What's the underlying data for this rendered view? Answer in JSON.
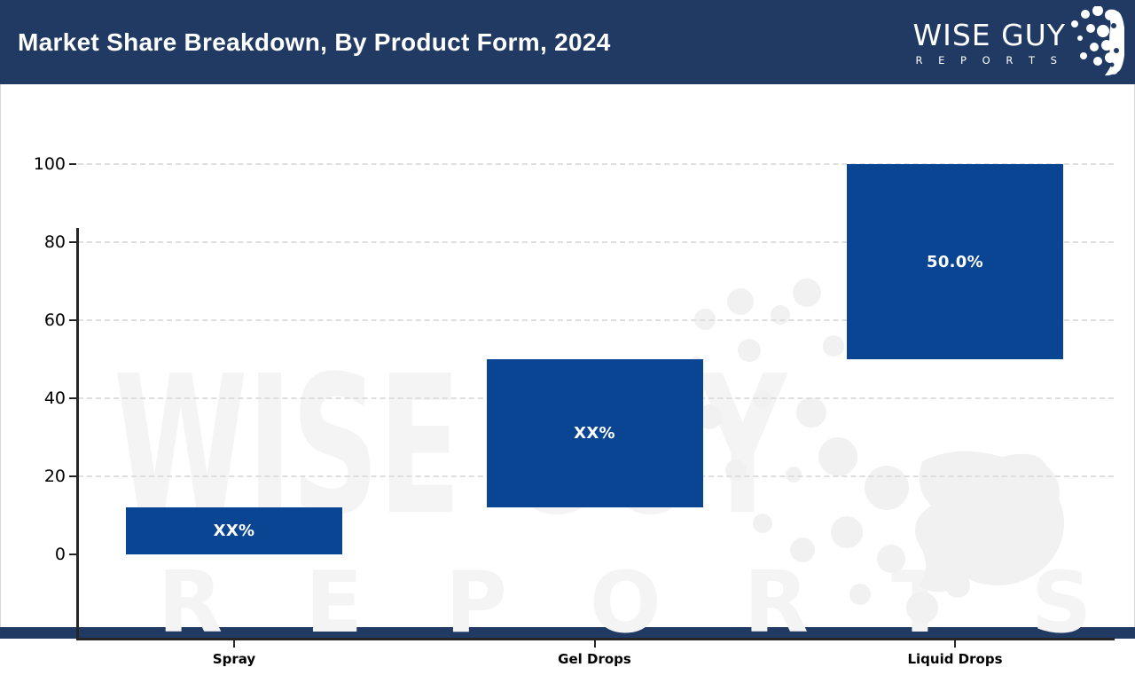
{
  "header": {
    "title": "Market Share Breakdown, By Product Form, 2024",
    "logo": {
      "brand": "WISE GUY",
      "sub": "R E P O R T S"
    }
  },
  "watermark": {
    "brand": "WISE GUY",
    "sub": "R E P O R T S"
  },
  "colors": {
    "header_bg": "#203a64",
    "bar": "#0a4593",
    "grid": "#dedede",
    "axis": "#262626",
    "watermark": "#f4f4f4",
    "bar_label": "#ffffff"
  },
  "chart_data": {
    "type": "bar",
    "subtype": "floating-waterfall",
    "title": "Market Share Breakdown, By Product Form, 2024",
    "categories": [
      "Spray",
      "Gel Drops",
      "Liquid Drops"
    ],
    "series": [
      {
        "name": "Market Share (%)",
        "segments": [
          {
            "category": "Spray",
            "start": 0,
            "end": 12,
            "label": "XX%"
          },
          {
            "category": "Gel Drops",
            "start": 12,
            "end": 50,
            "label": "XX%"
          },
          {
            "category": "Liquid Drops",
            "start": 50,
            "end": 100,
            "label": "50.0%"
          }
        ]
      }
    ],
    "xlabel": "",
    "ylabel": "",
    "yticks": [
      0,
      20,
      40,
      60,
      80,
      100
    ],
    "ylim": [
      0,
      105
    ],
    "grid": "horizontal-dashed",
    "legend": false
  }
}
